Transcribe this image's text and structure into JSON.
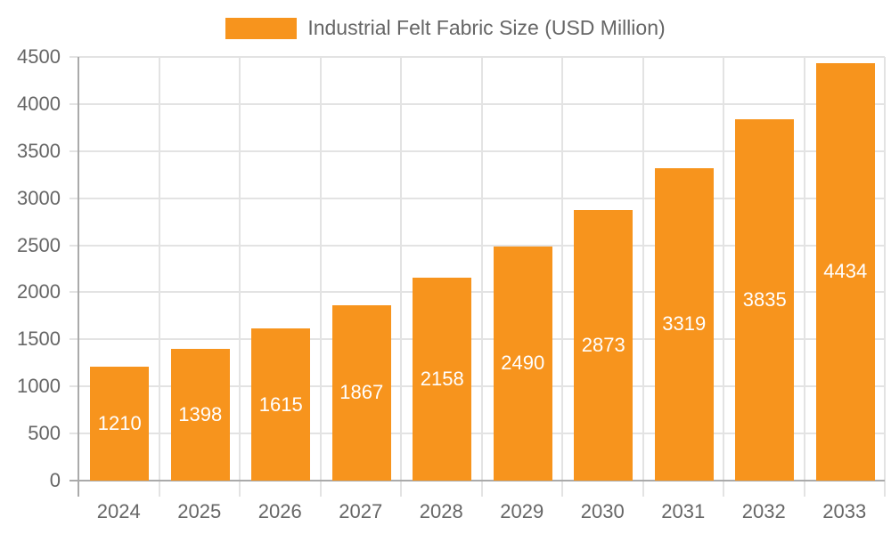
{
  "chart_data": {
    "type": "bar",
    "title": "",
    "legend": [
      "Industrial Felt Fabric Size (USD Million)"
    ],
    "legend_position": "top",
    "categories": [
      "2024",
      "2025",
      "2026",
      "2027",
      "2028",
      "2029",
      "2030",
      "2031",
      "2032",
      "2033"
    ],
    "series": [
      {
        "name": "Industrial Felt Fabric Size (USD Million)",
        "values": [
          1210,
          1398,
          1615,
          1867,
          2158,
          2490,
          2873,
          3319,
          3835,
          4434
        ]
      }
    ],
    "xlabel": "",
    "ylabel": "",
    "ylim": [
      0,
      4500
    ],
    "yticks": [
      "0",
      "500",
      "1000",
      "1500",
      "2000",
      "2500",
      "3000",
      "3500",
      "4000",
      "4500"
    ],
    "grid": true,
    "data_labels": true,
    "colors": {
      "bar": "#f7941d",
      "grid": "#e3e3e3",
      "axis": "#aaaaaa",
      "text": "#666666",
      "label": "#ffffff"
    }
  }
}
